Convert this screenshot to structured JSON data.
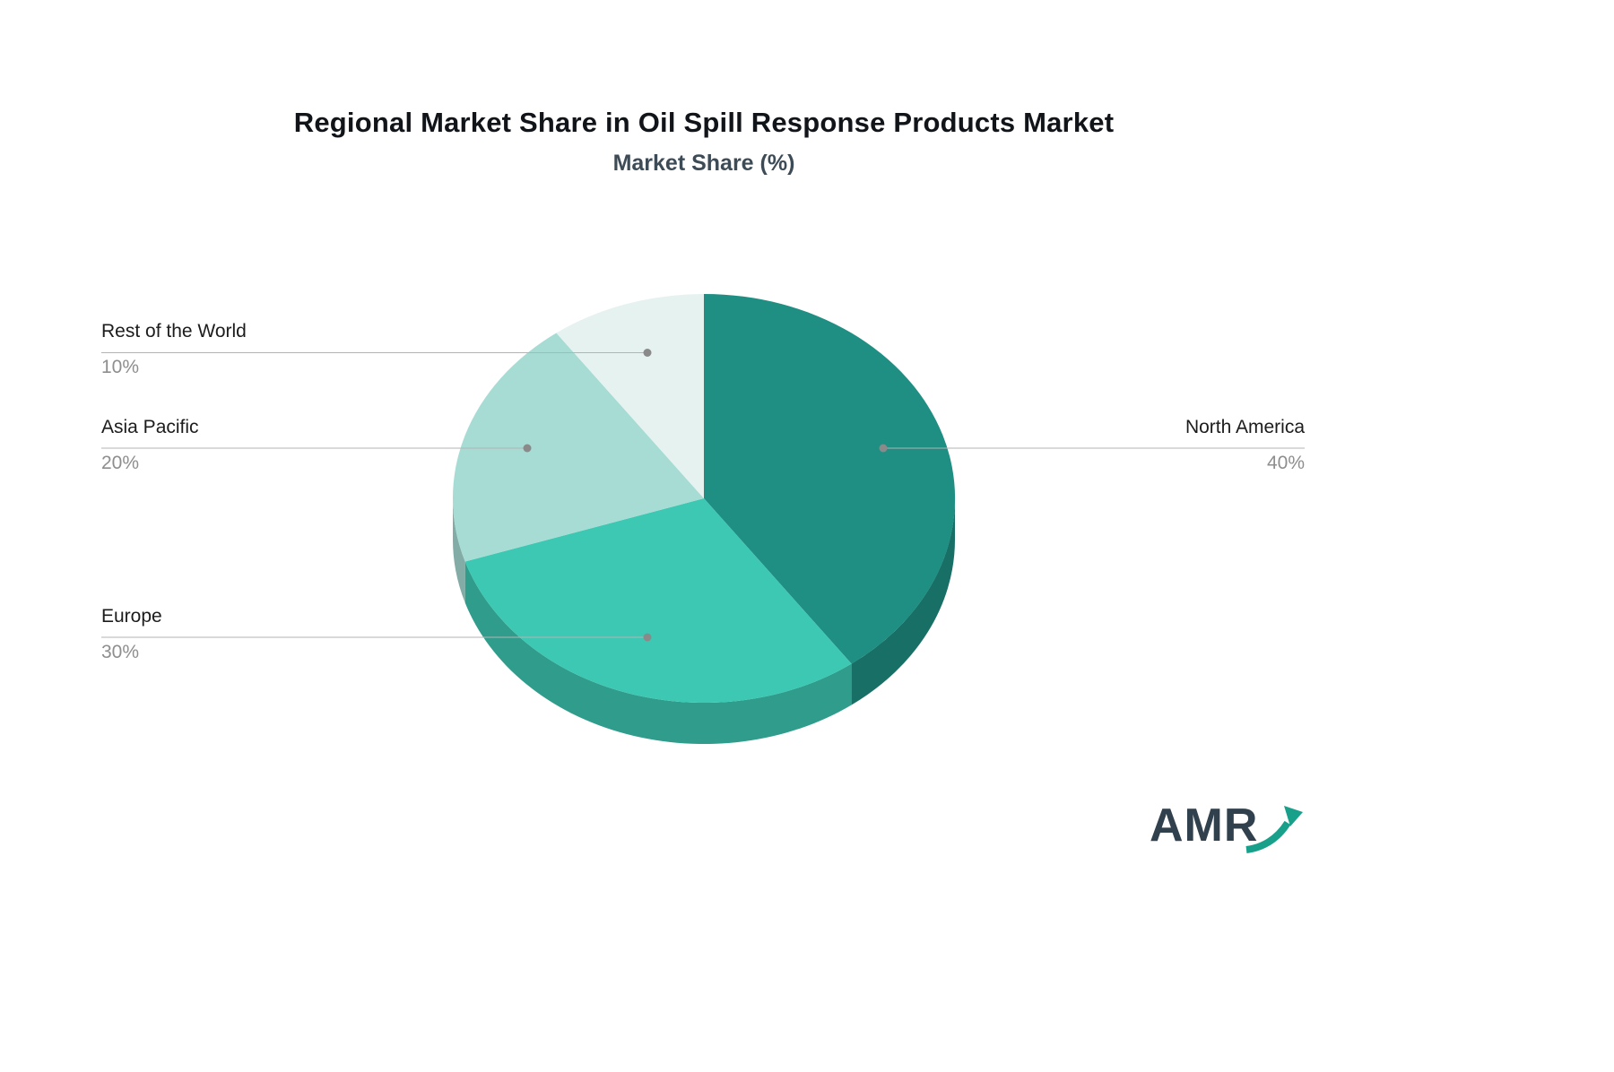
{
  "page": {
    "background": "#ffffff"
  },
  "chart_data": {
    "type": "pie",
    "effect": "3d",
    "title": "Regional Market Share in Oil Spill Response Products Market",
    "subtitle": "Market Share (%)",
    "labels": [
      "North America",
      "Europe",
      "Asia Pacific",
      "Rest of the World"
    ],
    "values": [
      40,
      30,
      20,
      10
    ],
    "display_values": [
      "40%",
      "30%",
      "20%",
      "10%"
    ],
    "colors": [
      "#1f8e83",
      "#3cc8b3",
      "#a7dcd4",
      "#e6f2f0"
    ],
    "start_angle_deg": 0,
    "direction": "clockwise",
    "legend_position": "none",
    "leader_line_color": "#b3b3b3",
    "leader_dot_color": "#8a8a8a",
    "label_text_color": "#1c1c1c",
    "label_value_color": "#8e8e8e"
  },
  "logo": {
    "text": "AMR",
    "text_color": "#31404d",
    "arrow_color": "#18a08b"
  }
}
